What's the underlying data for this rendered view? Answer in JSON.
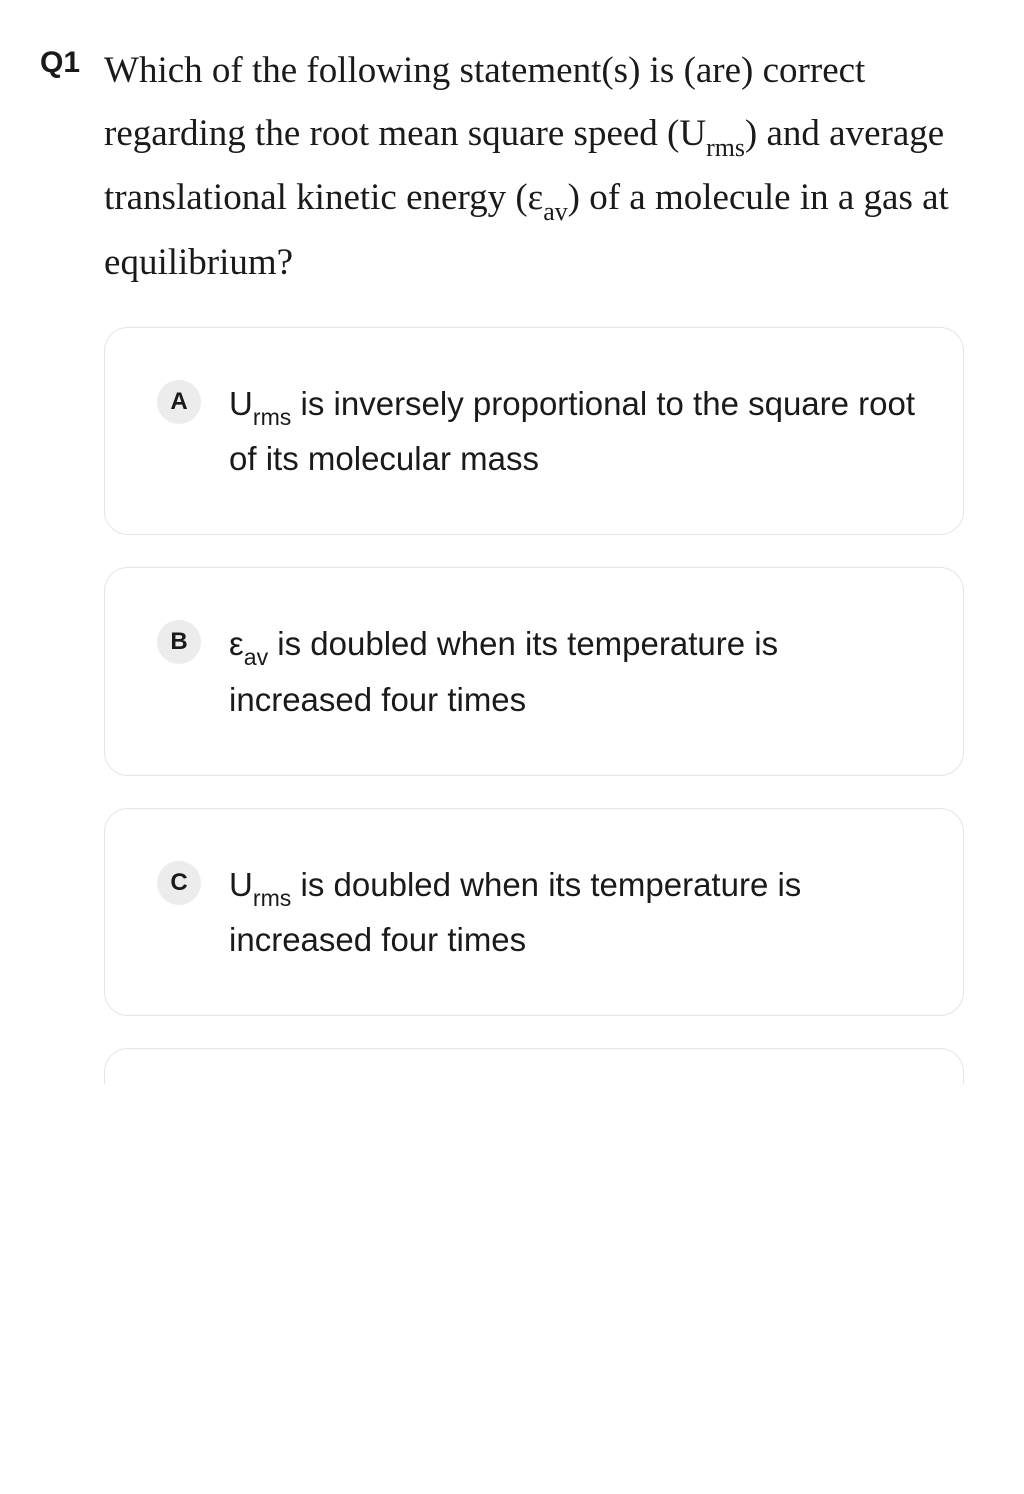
{
  "question": {
    "number": "Q1",
    "text_parts": {
      "p1": "Which of the following statement(s) is (are) correct regarding the root mean square speed (U",
      "sub1": "rms",
      "p2": ") and average translational kinetic energy (ε",
      "sub2": "av",
      "p3": ") of a molecule in a gas at equilibrium?"
    }
  },
  "options": [
    {
      "letter": "A",
      "prefixVar": "U",
      "prefixSub": "rms",
      "rest": " is inversely proportional to the square root of its molecular mass"
    },
    {
      "letter": "B",
      "prefixVar": "ε",
      "prefixSub": "av",
      "rest": " is doubled when its temperature is increased four times"
    },
    {
      "letter": "C",
      "prefixVar": "U",
      "prefixSub": "rms",
      "rest": " is doubled when its temperature is increased four times"
    }
  ],
  "styles": {
    "background_color": "#ffffff",
    "text_color": "#1a1a1a",
    "option_border_color": "#e5e5e5",
    "option_border_radius": 24,
    "letter_circle_bg": "#ececec",
    "question_font_family": "Georgia, serif",
    "option_font_family": "system-ui, Arial, sans-serif",
    "question_fontsize": 37,
    "option_fontsize": 33,
    "question_number_fontsize": 30,
    "letter_fontsize": 24
  }
}
